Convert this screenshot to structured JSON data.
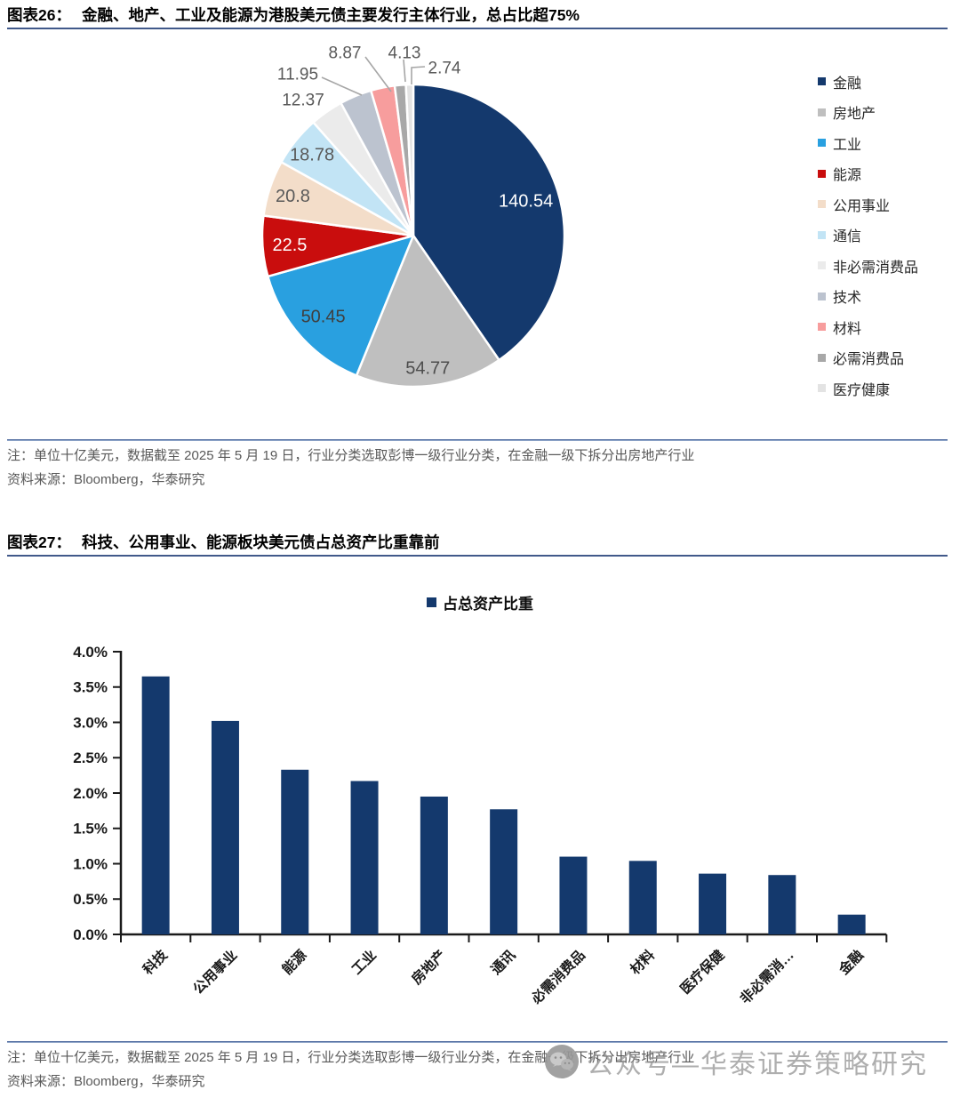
{
  "figure26": {
    "tag": "图表26：",
    "title": "金融、地产、工业及能源为港股美元债主要发行主体行业，总占比超75%",
    "note": "注：单位十亿美元，数据截至 2025 年 5 月 19 日，行业分类选取彭博一级行业分类，在金融一级下拆分出房地产行业",
    "source": "资料来源：Bloomberg，华泰研究"
  },
  "figure27": {
    "tag": "图表27：",
    "title": "科技、公用事业、能源板块美元债占总资产比重靠前",
    "note": "注：单位十亿美元，数据截至 2025 年 5 月 19 日，行业分类选取彭博一级行业分类，在金融一级下拆分出房地产行业",
    "source": "资料来源：Bloomberg，华泰研究"
  },
  "watermark": {
    "text": "公众号—华泰证券策略研究"
  },
  "colors": {
    "navy": "#14396d",
    "rule_blue": "#8ba2c6",
    "note_text": "#595959",
    "axis": "#1a1a1a"
  },
  "chart_data": [
    {
      "type": "pie",
      "title": "金融、地产、工业及能源为港股美元债主要发行主体行业，总占比超75%",
      "unit": "十亿美元",
      "legend_position": "right",
      "slices": [
        {
          "name": "金融",
          "value": 140.54,
          "color": "#14396d",
          "label": "inside",
          "label_color": "#ffffff"
        },
        {
          "name": "房地产",
          "value": 54.77,
          "color": "#bfbfbf",
          "label": "inside",
          "label_color": "#4d4d4d"
        },
        {
          "name": "工业",
          "value": 50.45,
          "color": "#29a0e0",
          "label": "inside",
          "label_color": "#3f3f3f"
        },
        {
          "name": "能源",
          "value": 22.5,
          "color": "#c90d0d",
          "label": "inside",
          "label_color": "#ffffff"
        },
        {
          "name": "公用事业",
          "value": 20.8,
          "color": "#f3ddc9",
          "label": "inside",
          "label_color": "#595959"
        },
        {
          "name": "通信",
          "value": 18.78,
          "color": "#c2e4f5",
          "label": "inside",
          "label_color": "#595959"
        },
        {
          "name": "非必需消费品",
          "value": 12.37,
          "color": "#ebebeb",
          "label": "outside",
          "label_color": "#595959"
        },
        {
          "name": "技术",
          "value": 11.95,
          "color": "#bcc3cf",
          "label": "outside",
          "label_color": "#595959"
        },
        {
          "name": "材料",
          "value": 8.87,
          "color": "#f79d9d",
          "label": "outside",
          "label_color": "#595959"
        },
        {
          "name": "必需消费品",
          "value": 4.13,
          "color": "#a8a8a8",
          "label": "outside",
          "label_color": "#595959"
        },
        {
          "name": "医疗健康",
          "value": 2.74,
          "color": "#e3e3e3",
          "label": "outside",
          "label_color": "#595959"
        }
      ]
    },
    {
      "type": "bar",
      "series_name": "占总资产比重",
      "categories": [
        "科技",
        "公用事业",
        "能源",
        "工业",
        "房地产",
        "通讯",
        "必需消费品",
        "材料",
        "医疗保健",
        "非必需消…",
        "金融"
      ],
      "values": [
        3.65,
        3.02,
        2.33,
        2.17,
        1.95,
        1.77,
        1.1,
        1.04,
        0.86,
        0.84,
        0.28
      ],
      "unit": "%",
      "ylim": [
        0,
        4
      ],
      "ytick_step": 0.5,
      "bar_color": "#14396d",
      "legend_position": "top"
    }
  ]
}
